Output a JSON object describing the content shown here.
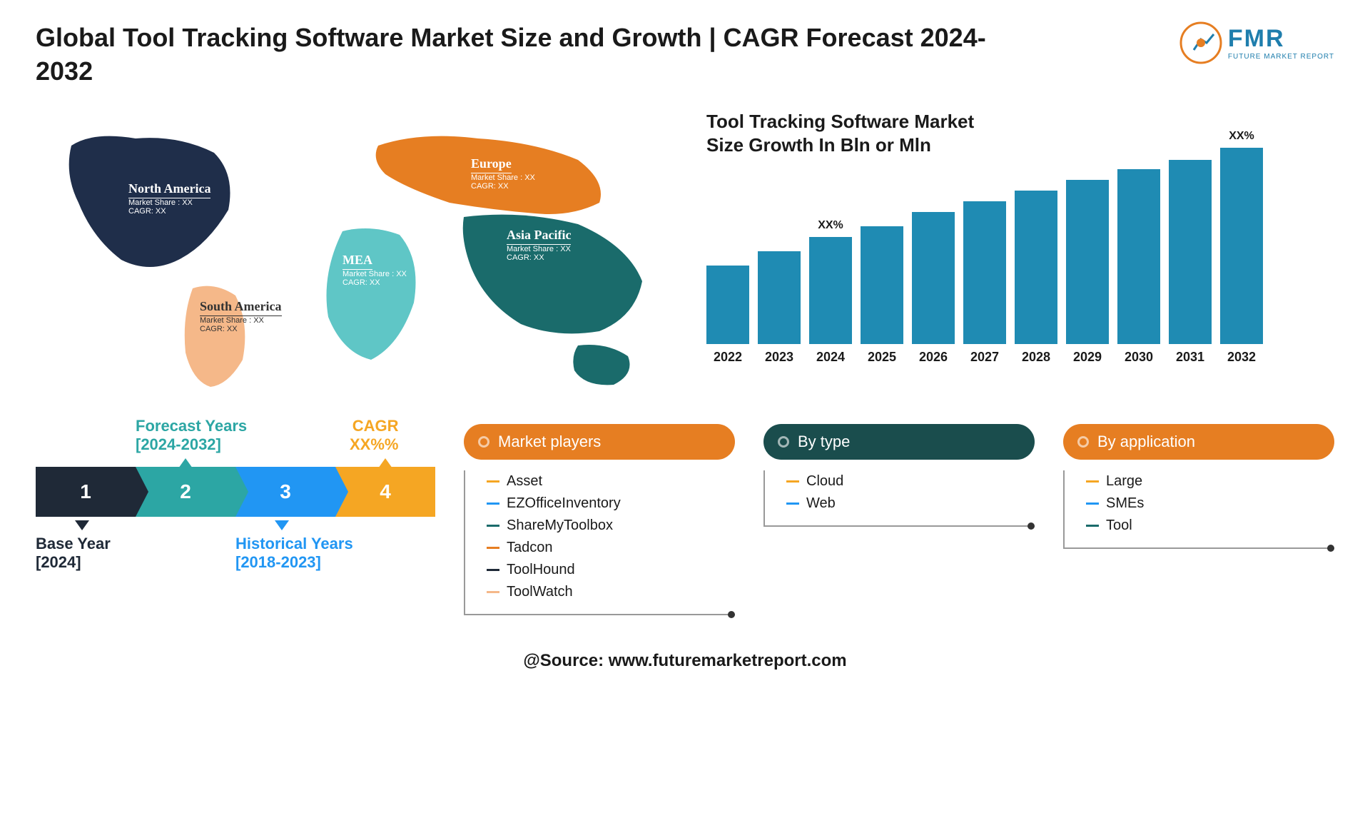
{
  "title": "Global Tool Tracking Software Market Size and Growth | CAGR Forecast 2024-2032",
  "logo": {
    "brand": "FMR",
    "subtitle": "FUTURE MARKET REPORT"
  },
  "map": {
    "regions": [
      {
        "name": "North America",
        "share": "Market Share : XX",
        "cagr": "CAGR: XX",
        "color": "#1f2e4a"
      },
      {
        "name": "South America",
        "share": "Market Share : XX",
        "cagr": "CAGR: XX",
        "color": "#f5b889"
      },
      {
        "name": "Europe",
        "share": "Market Share : XX",
        "cagr": "CAGR: XX",
        "color": "#e67e22"
      },
      {
        "name": "MEA",
        "share": "Market Share : XX",
        "cagr": "CAGR: XX",
        "color": "#5fc6c6"
      },
      {
        "name": "Asia Pacific",
        "share": "Market Share : XX",
        "cagr": "CAGR: XX",
        "color": "#1a6b6b"
      }
    ]
  },
  "chart": {
    "title": "Tool Tracking Software Market Size Growth In Bln or Mln",
    "bar_color": "#1f8bb3",
    "years": [
      "2022",
      "2023",
      "2024",
      "2025",
      "2026",
      "2027",
      "2028",
      "2029",
      "2030",
      "2031",
      "2032"
    ],
    "heights": [
      110,
      130,
      150,
      165,
      185,
      200,
      215,
      230,
      245,
      258,
      275
    ],
    "annot_2024": "XX%",
    "annot_2032": "XX%",
    "label_fontsize": 18
  },
  "timeline": {
    "labels": {
      "base": {
        "title": "Base Year",
        "range": "[2024]",
        "color": "#1f2937"
      },
      "forecast": {
        "title": "Forecast Years",
        "range": "[2024-2032]",
        "color": "#2ca6a4"
      },
      "historical": {
        "title": "Historical Years",
        "range": "[2018-2023]",
        "color": "#2196f3"
      },
      "cagr": {
        "title": "CAGR",
        "range": "XX%%",
        "color": "#f5a623"
      }
    },
    "steps": [
      "1",
      "2",
      "3",
      "4"
    ],
    "step_colors": [
      "#1f2937",
      "#2ca6a4",
      "#2196f3",
      "#f5a623"
    ]
  },
  "categories": [
    {
      "header": "Market players",
      "header_bg": "#e67e22",
      "items": [
        {
          "label": "Asset",
          "tick_color": "#f5a623"
        },
        {
          "label": "EZOfficeInventory",
          "tick_color": "#2196f3"
        },
        {
          "label": "ShareMyToolbox",
          "tick_color": "#1a6b6b"
        },
        {
          "label": "Tadcon",
          "tick_color": "#e67e22"
        },
        {
          "label": "ToolHound",
          "tick_color": "#1f2937"
        },
        {
          "label": "ToolWatch",
          "tick_color": "#f5b889"
        }
      ]
    },
    {
      "header": "By type",
      "header_bg": "#1a4d4d",
      "items": [
        {
          "label": "Cloud",
          "tick_color": "#f5a623"
        },
        {
          "label": "Web",
          "tick_color": "#2196f3"
        }
      ]
    },
    {
      "header": "By application",
      "header_bg": "#e67e22",
      "items": [
        {
          "label": "Large",
          "tick_color": "#f5a623"
        },
        {
          "label": "SMEs",
          "tick_color": "#2196f3"
        },
        {
          "label": "Tool",
          "tick_color": "#1a6b6b"
        }
      ]
    }
  ],
  "source": "@Source: www.futuremarketreport.com"
}
